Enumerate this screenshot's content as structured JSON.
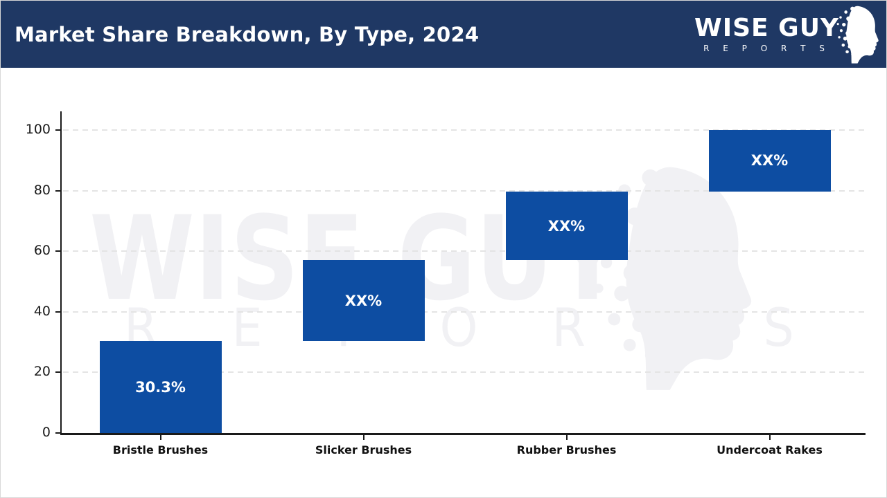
{
  "header": {
    "title": "Market Share Breakdown, By Type, 2024",
    "bg_color": "#1F3864",
    "logo": {
      "line1": "WISE GUY",
      "line2": "R E P O R T S"
    }
  },
  "watermark": {
    "line1": "WISE GUY",
    "line2": "R E P O R T S"
  },
  "chart_data": {
    "type": "bar",
    "subtype": "waterfall-floating-bars",
    "title": "Market Share Breakdown, By Type, 2024",
    "categories": [
      "Bristle Brushes",
      "Slicker Brushes",
      "Rubber Brushes",
      "Undercoat Rakes"
    ],
    "series": [
      {
        "name": "Market share (%)",
        "segments": [
          {
            "category": "Bristle Brushes",
            "start": 0,
            "end": 30.3,
            "label": "30.3%"
          },
          {
            "category": "Slicker Brushes",
            "start": 30.3,
            "end": 57,
            "label": "XX%"
          },
          {
            "category": "Rubber Brushes",
            "start": 57,
            "end": 79.7,
            "label": "XX%"
          },
          {
            "category": "Undercoat Rakes",
            "start": 79.7,
            "end": 100,
            "label": "XX%"
          }
        ]
      }
    ],
    "xlabel": "",
    "ylabel": "",
    "yticks": [
      0,
      20,
      40,
      60,
      80,
      100
    ],
    "ylim": [
      0,
      106
    ],
    "grid": "horizontal-dashed",
    "legend": false,
    "colors": {
      "bar": "#0D4DA2",
      "bar_label": "#FFFFFF",
      "axis": "#1A1A1A",
      "grid": "#E4E4E4",
      "watermark": "#F1F1F4",
      "border": "#D8D8D8"
    }
  }
}
